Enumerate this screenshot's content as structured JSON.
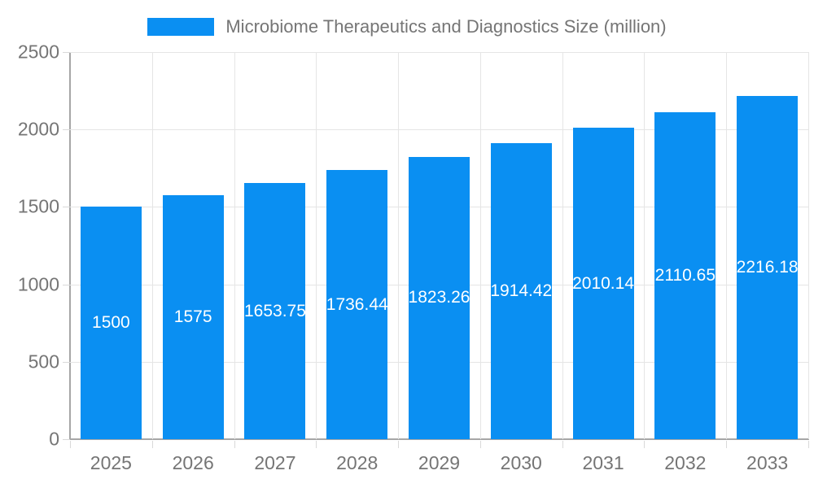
{
  "chart_data": {
    "type": "bar",
    "title": "Microbiome Therapeutics and Diagnostics Size (million)",
    "legend": {
      "label": "Microbiome Therapeutics and Diagnostics Size (million)",
      "position": "top"
    },
    "categories": [
      "2025",
      "2026",
      "2027",
      "2028",
      "2029",
      "2030",
      "2031",
      "2032",
      "2033"
    ],
    "series": [
      {
        "name": "Microbiome Therapeutics and Diagnostics Size (million)",
        "values": [
          1500,
          1575,
          1653.75,
          1736.44,
          1823.26,
          1914.42,
          2010.14,
          2110.65,
          2216.18
        ],
        "value_labels": [
          "1500",
          "1575",
          "1653.75",
          "1736.44",
          "1823.26",
          "1914.42",
          "2010.14",
          "2110.65",
          "2216.18"
        ]
      }
    ],
    "xlabel": "",
    "ylabel": "",
    "ylim": [
      0,
      2500
    ],
    "y_ticks": [
      0,
      500,
      1000,
      1500,
      2000,
      2500
    ],
    "grid": true,
    "legend_position": "top",
    "colors": {
      "bar": "#0a8ff2",
      "bar_label_text": "#ffffff",
      "axis_text": "#757575",
      "gridline": "#e5e5e5",
      "tick_mark": "#d9d9d9",
      "axis_line": "#a6a6a6",
      "background": "#ffffff"
    }
  }
}
